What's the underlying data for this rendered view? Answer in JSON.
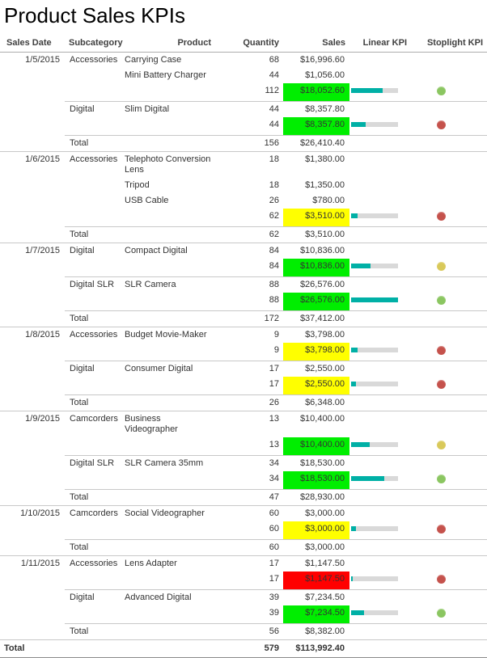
{
  "title": "Product Sales KPIs",
  "columns": [
    "Sales Date",
    "Subcategory",
    "Product",
    "Quantity",
    "Sales",
    "Linear KPI",
    "Stoplight KPI"
  ],
  "colors": {
    "green": "#00ee00",
    "yellow": "#ffff00",
    "red": "#ff0000",
    "gauge_fill": "#00b0a6",
    "gauge_track": "#d9d9d9",
    "dot_green": "#8bc661",
    "dot_red": "#c5524c",
    "dot_yellow": "#d9c95a"
  },
  "rows": [
    {
      "date": "1/5/2015",
      "dspan": 6,
      "sub": "Accessories",
      "sspan": 3,
      "product": "Carrying Case",
      "qty": "68",
      "sales": "$16,996.60"
    },
    {
      "product": "Mini Battery Charger",
      "qty": "44",
      "sales": "$1,056.00"
    },
    {
      "kind": "subtotal",
      "qty": "112",
      "sales": "$18,052.60",
      "bg": "green",
      "gauge": 68,
      "dot": "green"
    },
    {
      "sub": "Digital",
      "sspan": 2,
      "product": "Slim Digital",
      "qty": "44",
      "sales": "$8,357.80"
    },
    {
      "kind": "subtotal",
      "qty": "44",
      "sales": "$8,357.80",
      "bg": "green",
      "gauge": 31,
      "dot": "red"
    },
    {
      "kind": "total",
      "sub": "Total",
      "qty": "156",
      "sales": "$26,410.40"
    },
    {
      "date": "1/6/2015",
      "dspan": 5,
      "sub": "Accessories",
      "sspan": 4,
      "product": "Telephoto Conversion Lens",
      "qty": "18",
      "sales": "$1,380.00"
    },
    {
      "product": "Tripod",
      "qty": "18",
      "sales": "$1,350.00"
    },
    {
      "product": "USB Cable",
      "qty": "26",
      "sales": "$780.00"
    },
    {
      "kind": "subtotal",
      "qty": "62",
      "sales": "$3,510.00",
      "bg": "yellow",
      "gauge": 13,
      "dot": "red"
    },
    {
      "kind": "total",
      "sub": "Total",
      "qty": "62",
      "sales": "$3,510.00"
    },
    {
      "date": "1/7/2015",
      "dspan": 5,
      "sub": "Digital",
      "sspan": 2,
      "product": "Compact Digital",
      "qty": "84",
      "sales": "$10,836.00"
    },
    {
      "kind": "subtotal",
      "qty": "84",
      "sales": "$10,836.00",
      "bg": "green",
      "gauge": 41,
      "dot": "yellow"
    },
    {
      "sub": "Digital SLR",
      "sspan": 2,
      "product": "SLR Camera",
      "qty": "88",
      "sales": "$26,576.00"
    },
    {
      "kind": "subtotal",
      "qty": "88",
      "sales": "$26,576.00",
      "bg": "green",
      "gauge": 100,
      "dot": "green"
    },
    {
      "kind": "total",
      "sub": "Total",
      "qty": "172",
      "sales": "$37,412.00"
    },
    {
      "date": "1/8/2015",
      "dspan": 5,
      "sub": "Accessories",
      "sspan": 2,
      "product": "Budget Movie-Maker",
      "qty": "9",
      "sales": "$3,798.00"
    },
    {
      "kind": "subtotal",
      "qty": "9",
      "sales": "$3,798.00",
      "bg": "yellow",
      "gauge": 14,
      "dot": "red"
    },
    {
      "sub": "Digital",
      "sspan": 2,
      "product": "Consumer Digital",
      "qty": "17",
      "sales": "$2,550.00"
    },
    {
      "kind": "subtotal",
      "qty": "17",
      "sales": "$2,550.00",
      "bg": "yellow",
      "gauge": 10,
      "dot": "red"
    },
    {
      "kind": "total",
      "sub": "Total",
      "qty": "26",
      "sales": "$6,348.00"
    },
    {
      "date": "1/9/2015",
      "dspan": 5,
      "sub": "Camcorders",
      "sspan": 2,
      "product": "Business Videographer",
      "qty": "13",
      "sales": "$10,400.00"
    },
    {
      "kind": "subtotal",
      "qty": "13",
      "sales": "$10,400.00",
      "bg": "green",
      "gauge": 39,
      "dot": "yellow"
    },
    {
      "sub": "Digital SLR",
      "sspan": 2,
      "product": "SLR Camera 35mm",
      "qty": "34",
      "sales": "$18,530.00"
    },
    {
      "kind": "subtotal",
      "qty": "34",
      "sales": "$18,530.00",
      "bg": "green",
      "gauge": 70,
      "dot": "green"
    },
    {
      "kind": "total",
      "sub": "Total",
      "qty": "47",
      "sales": "$28,930.00"
    },
    {
      "date": "1/10/2015",
      "dspan": 3,
      "sub": "Camcorders",
      "sspan": 2,
      "product": "Social Videographer",
      "qty": "60",
      "sales": "$3,000.00"
    },
    {
      "kind": "subtotal",
      "qty": "60",
      "sales": "$3,000.00",
      "bg": "yellow",
      "gauge": 11,
      "dot": "red"
    },
    {
      "kind": "total",
      "sub": "Total",
      "qty": "60",
      "sales": "$3,000.00"
    },
    {
      "date": "1/11/2015",
      "dspan": 5,
      "sub": "Accessories",
      "sspan": 2,
      "product": "Lens Adapter",
      "qty": "17",
      "sales": "$1,147.50"
    },
    {
      "kind": "subtotal",
      "qty": "17",
      "sales": "$1,147.50",
      "bg": "red",
      "gauge": 4,
      "dot": "red"
    },
    {
      "sub": "Digital",
      "sspan": 2,
      "product": "Advanced Digital",
      "qty": "39",
      "sales": "$7,234.50"
    },
    {
      "kind": "subtotal",
      "qty": "39",
      "sales": "$7,234.50",
      "bg": "green",
      "gauge": 27,
      "dot": "green"
    },
    {
      "kind": "total",
      "sub": "Total",
      "qty": "56",
      "sales": "$8,382.00"
    },
    {
      "kind": "grand",
      "label": "Total",
      "qty": "579",
      "sales": "$113,992.40"
    }
  ]
}
